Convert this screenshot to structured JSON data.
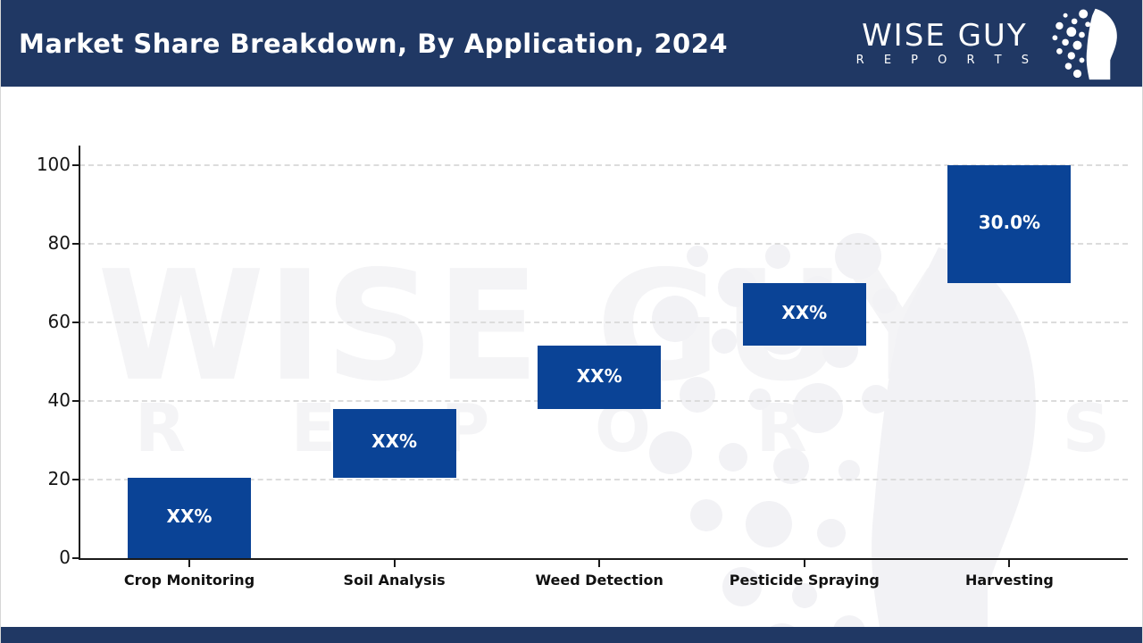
{
  "header": {
    "title": "Market Share Breakdown, By Application, 2024",
    "bg_color": "#203864",
    "logo": {
      "line1": "WISE GUY",
      "line2": "R E P O R T S"
    }
  },
  "watermark": {
    "line1": "WISE GUY",
    "line2": "R E P O R T S"
  },
  "footer": {
    "bg_color": "#203864"
  },
  "chart_data": {
    "type": "bar",
    "subtype": "floating-waterfall",
    "title": "Market Share Breakdown, By Application, 2024",
    "categories": [
      "Crop Monitoring",
      "Soil Analysis",
      "Weed Detection",
      "Pesticide Spraying",
      "Harvesting"
    ],
    "segments": [
      [
        0,
        20.5
      ],
      [
        20.5,
        38
      ],
      [
        38,
        54
      ],
      [
        54,
        70
      ],
      [
        70,
        100
      ]
    ],
    "segment_sizes": [
      20.5,
      17.5,
      16,
      16,
      30
    ],
    "bar_labels": [
      "XX%",
      "XX%",
      "XX%",
      "XX%",
      "30.0%"
    ],
    "y_ticks": [
      0,
      20,
      40,
      60,
      80,
      100
    ],
    "ylim": [
      0,
      105
    ],
    "xlabel": "",
    "ylabel": "",
    "grid": "horizontal-dashed",
    "bar_color": "#0a4396",
    "label_color": "#ffffff"
  }
}
